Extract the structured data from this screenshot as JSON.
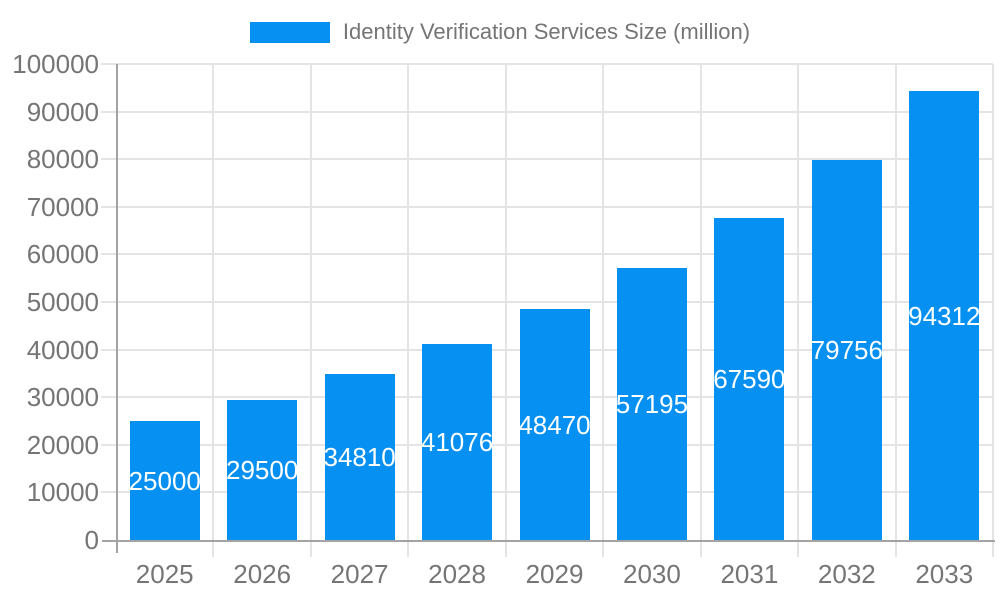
{
  "chart_data": {
    "type": "bar",
    "series_name": "Identity Verification Services Size (million)",
    "categories": [
      "2025",
      "2026",
      "2027",
      "2028",
      "2029",
      "2030",
      "2031",
      "2032",
      "2033"
    ],
    "values": [
      25000,
      29500,
      34810,
      41076,
      48470,
      57195,
      67590,
      79756,
      94312
    ],
    "xlabel": "",
    "ylabel": "",
    "ylim": [
      0,
      100000
    ],
    "ytick_step": 10000,
    "ytick_labels": [
      "0",
      "10000",
      "20000",
      "30000",
      "40000",
      "50000",
      "60000",
      "70000",
      "80000",
      "90000",
      "100000"
    ],
    "grid": true,
    "legend_position": "top-center",
    "bar_label_position": "inside-middle",
    "colors": {
      "bar": "#0590f2",
      "bar_label": "#ffffff",
      "axis_text": "#757575",
      "axis_line": "#a3a3a3",
      "grid_line": "#e4e4e4",
      "background": "#ffffff"
    }
  }
}
